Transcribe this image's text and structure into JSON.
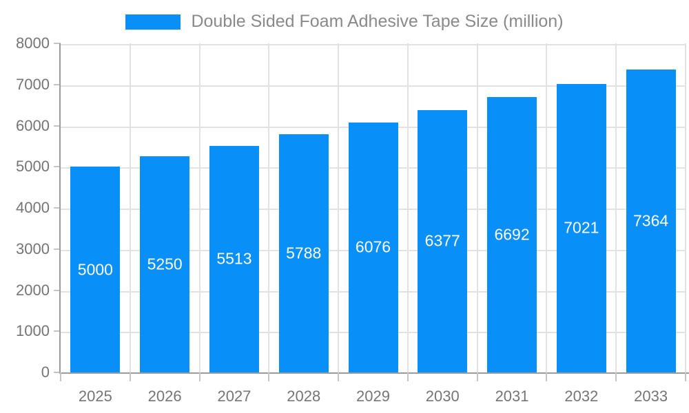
{
  "chart_data": {
    "type": "bar",
    "title": "Double Sided Foam Adhesive Tape Size (million)",
    "categories": [
      "2025",
      "2026",
      "2027",
      "2028",
      "2029",
      "2030",
      "2031",
      "2032",
      "2033"
    ],
    "values": [
      5000,
      5250,
      5513,
      5788,
      6076,
      6377,
      6692,
      7021,
      7364
    ],
    "xlabel": "",
    "ylabel": "",
    "ylim": [
      0,
      8000
    ],
    "yticks": [
      0,
      1000,
      2000,
      3000,
      4000,
      5000,
      6000,
      7000,
      8000
    ],
    "grid": true,
    "legend_position": "top-center",
    "value_labels": "centered-inside-bars",
    "colors": {
      "bar": "#0990f8",
      "value_label": "#ffffff",
      "axis_line": "#9b9b9b",
      "grid_line": "#e2e2e2",
      "tick_mark": "#c4c4c4",
      "tick_label": "#757575",
      "legend_text": "#8a8a8a",
      "background": "#ffffff"
    }
  }
}
